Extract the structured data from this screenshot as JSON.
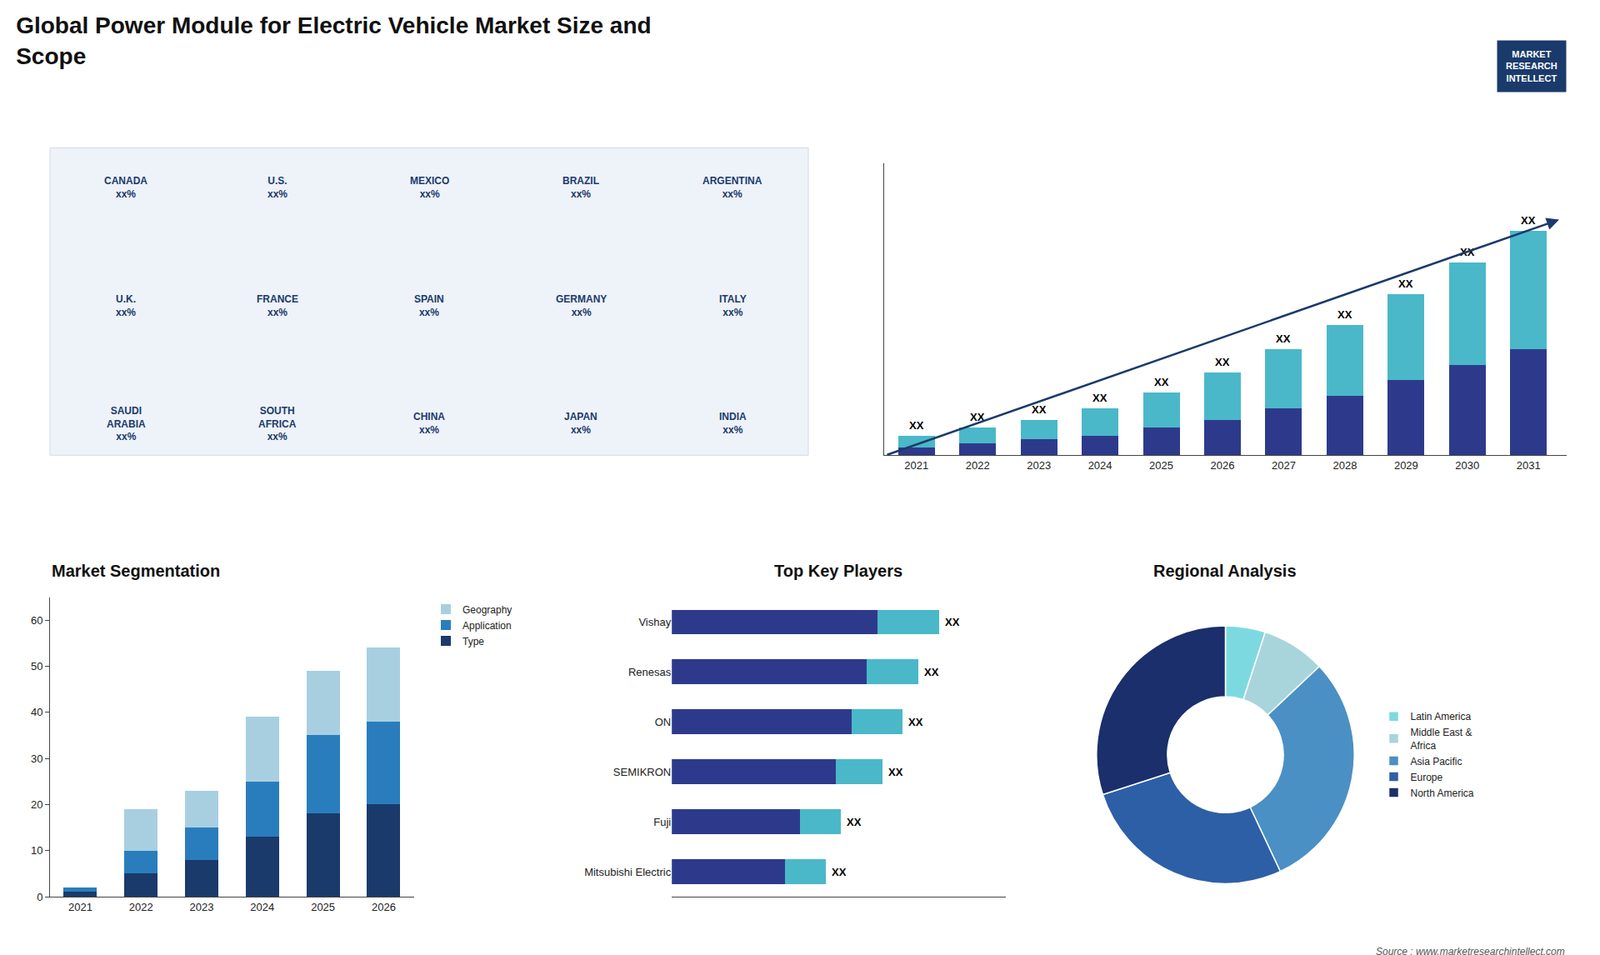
{
  "title": "Global Power Module for Electric Vehicle Market Size and\nScope",
  "annotations": [
    "MARKET\nRESEARCH\nINTELLECT",
    "Source : www.marketresearchintellect.com"
  ],
  "chart_data": [
    {
      "type": "map",
      "annotations": [
        "CANADA\nxx%",
        "U.S.\nxx%",
        "MEXICO\nxx%",
        "BRAZIL\nxx%",
        "ARGENTINA\nxx%",
        "U.K.\nxx%",
        "FRANCE\nxx%",
        "SPAIN\nxx%",
        "GERMANY\nxx%",
        "ITALY\nxx%",
        "SAUDI\nARABIA\nxx%",
        "SOUTH\nAFRICA\nxx%",
        "CHINA\nxx%",
        "JAPAN\nxx%",
        "INDIA\nxx%"
      ]
    },
    {
      "type": "bar",
      "stacked": true,
      "categories": [
        "2021",
        "2022",
        "2023",
        "2024",
        "2025",
        "2026",
        "2027",
        "2028",
        "2029",
        "2030",
        "2031"
      ],
      "series": [
        {
          "color": "#2d3a8c",
          "values": [
            2,
            3,
            4,
            5,
            7,
            9,
            12,
            15,
            19,
            23,
            27
          ]
        },
        {
          "color": "#4ab8c8",
          "values": [
            3,
            4,
            5,
            7,
            9,
            12,
            15,
            18,
            22,
            26,
            30
          ],
          "value_labels": [
            "XX",
            "XX",
            "XX",
            "XX",
            "XX",
            "XX",
            "XX",
            "XX",
            "XX",
            "XX",
            "XX"
          ]
        }
      ],
      "ylim": [
        0,
        74.1
      ],
      "tick_labels": "x",
      "grid": false
    },
    {
      "type": "bar",
      "title": "Market Segmentation",
      "stacked": true,
      "categories": [
        "2021",
        "2022",
        "2023",
        "2024",
        "2025",
        "2026"
      ],
      "series": [
        {
          "name": "Type",
          "color": "#1a3a6b",
          "values": [
            1,
            5,
            8,
            13,
            18,
            20
          ]
        },
        {
          "name": "Application",
          "color": "#2a7dbd",
          "values": [
            1,
            5,
            7,
            12,
            17,
            18
          ]
        },
        {
          "name": "Geography",
          "color": "#a8cfe0",
          "values": [
            0,
            9,
            8,
            14,
            14,
            16
          ]
        }
      ],
      "ylim": [
        0,
        65
      ],
      "yticks": [
        0,
        10,
        20,
        30,
        40,
        50,
        60
      ],
      "legend": "right",
      "grid": false
    },
    {
      "type": "bar",
      "title": "Top Key Players",
      "orientation": "horizontal",
      "stacked": true,
      "categories": [
        "Vishay",
        "Renesas",
        "ON",
        "SEMIKRON",
        "Fuji",
        "Mitsubishi Electric"
      ],
      "series": [
        {
          "color": "#2d3a8c",
          "values": [
            40,
            38,
            35,
            32,
            25,
            22
          ]
        },
        {
          "color": "#4ab8c8",
          "values": [
            12,
            10,
            10,
            9,
            8,
            8
          ],
          "value_labels": [
            "XX",
            "XX",
            "XX",
            "XX",
            "XX",
            "XX"
          ]
        }
      ],
      "xlim": [
        0,
        65
      ],
      "tick_labels": "y",
      "grid": false
    },
    {
      "type": "donut",
      "title": "Regional Analysis",
      "categories": [
        "Latin America",
        "Middle East &\nAfrica",
        "Asia Pacific",
        "Europe",
        "North America"
      ],
      "values": [
        5,
        8,
        30,
        27,
        30
      ],
      "colors": [
        "#7dd9e0",
        "#a8d5dc",
        "#4a90c4",
        "#2d5fa6",
        "#1a2f6b"
      ],
      "legend": "right"
    }
  ]
}
